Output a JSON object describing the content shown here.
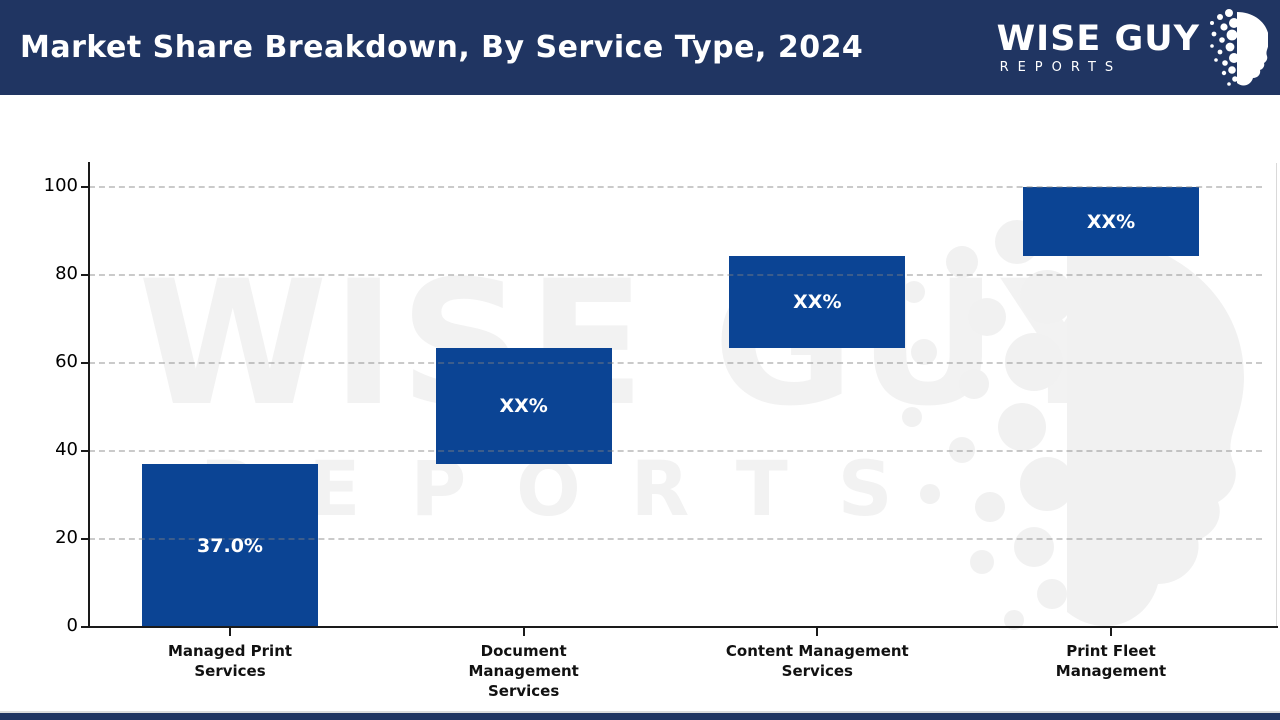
{
  "header": {
    "title": "Market Share Breakdown, By Service Type, 2024",
    "logo": {
      "name": "WISE GUY",
      "subname": "REPORTS"
    }
  },
  "watermark": {
    "line1": "WISE GUY",
    "line2": "REPORTS"
  },
  "chart_data": {
    "type": "bar",
    "subtype": "floating-segment-waterfall",
    "title": "Market Share Breakdown, By Service Type, 2024",
    "xlabel": "",
    "ylabel": "",
    "categories": [
      "Managed Print\nServices",
      "Document\nManagement\nServices",
      "Content Management\nServices",
      "Print Fleet\nManagement"
    ],
    "segments": [
      {
        "category": "Managed Print Services",
        "start": 0,
        "end": 37.0,
        "label": "37.0%"
      },
      {
        "category": "Document Management Services",
        "start": 37.0,
        "end": 63.5,
        "label": "XX%"
      },
      {
        "category": "Content Management Services",
        "start": 63.5,
        "end": 84.3,
        "label": "XX%"
      },
      {
        "category": "Print Fleet Management",
        "start": 84.3,
        "end": 100.0,
        "label": "XX%"
      }
    ],
    "yticks": [
      0,
      20,
      40,
      60,
      80,
      100
    ],
    "ylim": [
      0,
      105
    ],
    "grid": true,
    "grid_style": "dashed",
    "legend": "none",
    "bar_color": "#0b4494",
    "bar_label_color": "#ffffff"
  },
  "colors": {
    "header_bg": "#203562",
    "footer_bg": "#203562",
    "accent_blue": "#0b4494",
    "watermark_gray": "#f2f2f2"
  }
}
